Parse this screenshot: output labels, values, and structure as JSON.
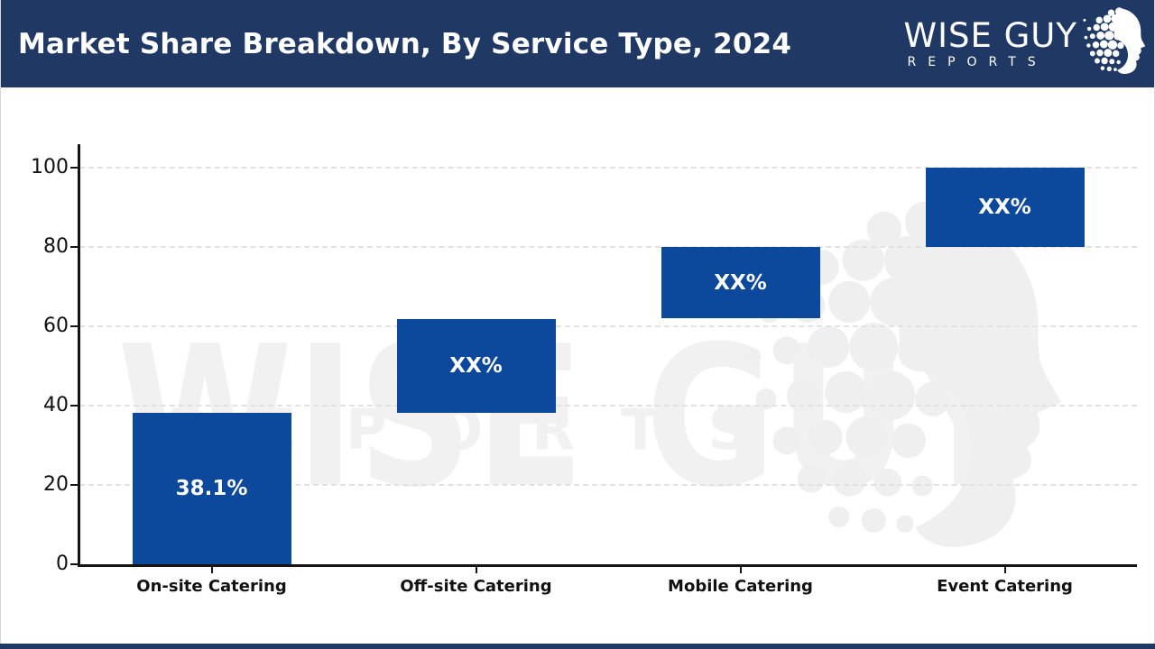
{
  "header": {
    "title": "Market Share Breakdown, By Service Type, 2024",
    "logo": {
      "line1": "WISE GUY",
      "line2": "REPORTS"
    }
  },
  "watermark": {
    "line1": "WISE GUY",
    "line2": "REPORTS"
  },
  "chart_data": {
    "type": "bar",
    "subtype": "waterfall",
    "title": "Market Share Breakdown, By Service Type, 2024",
    "categories": [
      "On-site Catering",
      "Off-site Catering",
      "Mobile Catering",
      "Event Catering"
    ],
    "series": [
      {
        "name": "Market share (%)",
        "segments": [
          {
            "category": "On-site Catering",
            "start": 0,
            "end": 38.1,
            "label": "38.1%"
          },
          {
            "category": "Off-site Catering",
            "start": 38.1,
            "end": 61.8,
            "label": "XX%"
          },
          {
            "category": "Mobile Catering",
            "start": 62,
            "end": 80,
            "label": "XX%"
          },
          {
            "category": "Event Catering",
            "start": 80,
            "end": 100,
            "label": "XX%"
          }
        ]
      }
    ],
    "xlabel": "",
    "ylabel": "",
    "ylim": [
      0,
      106
    ],
    "yticks": [
      0,
      20,
      40,
      60,
      80,
      100
    ],
    "grid": "dashed-horizontal",
    "legend": "none",
    "colors": {
      "bar": "#0c489c",
      "bar_label": "#ffffff",
      "axis": "#141414",
      "grid": "#e2e2e2",
      "header_bg": "#1f3864",
      "watermark": "#f0f0f0"
    }
  }
}
